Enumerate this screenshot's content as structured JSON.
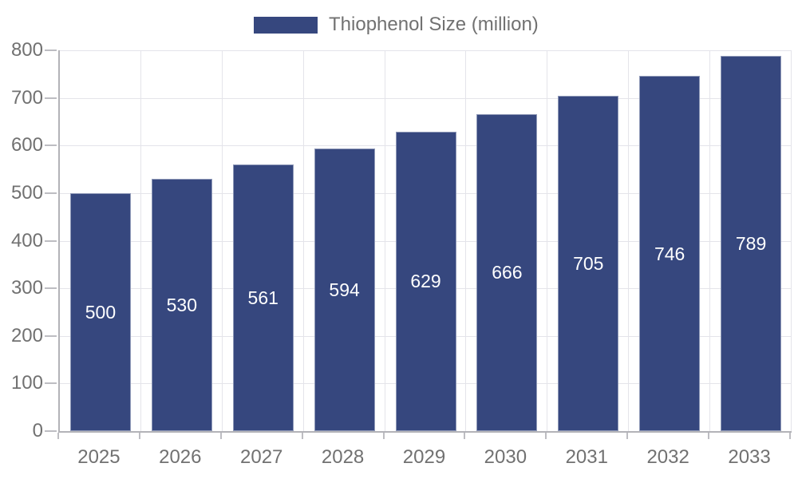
{
  "chart_data": {
    "type": "bar",
    "title": "",
    "categories": [
      "2025",
      "2026",
      "2027",
      "2028",
      "2029",
      "2030",
      "2031",
      "2032",
      "2033"
    ],
    "series": [
      {
        "name": "Thiophenol Size (million)",
        "values": [
          500,
          530,
          561,
          594,
          629,
          666,
          705,
          746,
          789
        ]
      }
    ],
    "value_labels_shown": true,
    "xlabel": "",
    "ylabel": "",
    "ylim": [
      0,
      800
    ],
    "ytick_step": 100,
    "ytick_labels": [
      "0",
      "100",
      "200",
      "300",
      "400",
      "500",
      "600",
      "700",
      "800"
    ],
    "grid": true,
    "legend_position": "top-center",
    "colors": {
      "bar": "#36477E",
      "grid": "#E4E4EA",
      "axis": "#B3B3B8",
      "tick": "#BDBDC2",
      "text": "#717171",
      "value_label": "#FFFFFF",
      "background": "#FFFFFF"
    }
  }
}
